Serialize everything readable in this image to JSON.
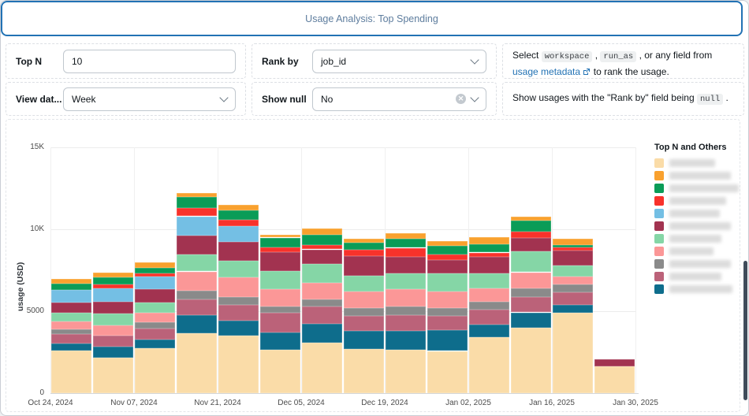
{
  "header": {
    "title": "Usage Analysis: Top Spending"
  },
  "controls": {
    "top_n": {
      "label": "Top N",
      "value": "10"
    },
    "rank_by": {
      "label": "Rank by",
      "value": "job_id"
    },
    "view_data": {
      "label": "View dat...",
      "value": "Week"
    },
    "show_null": {
      "label": "Show null",
      "value": "No"
    },
    "rank_by_help": {
      "t1": "Select ",
      "code1": "workspace",
      "t2": " , ",
      "code2": "run_as",
      "t3": " , or any field from ",
      "link": "usage metadata",
      "t4": " to rank the usage."
    },
    "show_null_help": {
      "t1": "Show usages with the \"Rank by\" field being ",
      "code1": "null",
      "t2": " ."
    }
  },
  "chart_data": {
    "type": "bar",
    "stacked": true,
    "title": "",
    "ylabel": "usage (USD)",
    "ylim": [
      0,
      15000
    ],
    "y_ticks": [
      {
        "label": "0",
        "value": 0
      },
      {
        "label": "5000",
        "value": 5000
      },
      {
        "label": "10K",
        "value": 10000
      },
      {
        "label": "15K",
        "value": 15000
      }
    ],
    "x_tick_labels": [
      "Oct 24, 2024",
      "Nov 07, 2024",
      "Nov 21, 2024",
      "Dec 05, 2024",
      "Dec 19, 2024",
      "Jan 02, 2025",
      "Jan 16, 2025",
      "Jan 30, 2025"
    ],
    "bars_count": 14,
    "legend_title": "Top N and Others",
    "legend_labels_redacted": true,
    "series": [
      {
        "name": "",
        "color": "#FADCA8",
        "values": [
          2615,
          2165,
          2725,
          3640,
          3530,
          2645,
          3095,
          2680,
          2645,
          2570,
          3400,
          4010,
          4890,
          1635
        ]
      },
      {
        "name": "",
        "color": "#F9A12E",
        "values": [
          285,
          320,
          315,
          210,
          315,
          160,
          400,
          225,
          370,
          320,
          420,
          210,
          400,
          0
        ]
      },
      {
        "name": "",
        "color": "#0A9C57",
        "values": [
          405,
          435,
          370,
          675,
          595,
          595,
          625,
          445,
          545,
          530,
          510,
          675,
          130,
          0
        ]
      },
      {
        "name": "",
        "color": "#F8322B",
        "values": [
          0,
          205,
          160,
          510,
          365,
          290,
          255,
          350,
          530,
          325,
          240,
          400,
          205,
          0
        ]
      },
      {
        "name": "",
        "color": "#74BFE4",
        "values": [
          755,
          835,
          805,
          1175,
          995,
          0,
          0,
          0,
          0,
          0,
          0,
          0,
          0,
          0
        ]
      },
      {
        "name": "",
        "color": "#A23350",
        "values": [
          605,
          720,
          805,
          1170,
          1155,
          1155,
          865,
          1220,
          1045,
          830,
          1045,
          805,
          915,
          420
        ]
      },
      {
        "name": "",
        "color": "#85D6A6",
        "values": [
          550,
          735,
          605,
          1025,
          1010,
          1120,
          1175,
          960,
          960,
          1090,
          880,
          1280,
          675,
          0
        ]
      },
      {
        "name": "",
        "color": "#FB9797",
        "values": [
          480,
          625,
          595,
          1175,
          1200,
          1045,
          1010,
          1025,
          1045,
          1025,
          850,
          960,
          445,
          0
        ]
      },
      {
        "name": "",
        "color": "#8A8A8A",
        "values": [
          290,
          0,
          400,
          530,
          480,
          400,
          435,
          445,
          510,
          445,
          480,
          565,
          515,
          0
        ]
      },
      {
        "name": "",
        "color": "#BB6279",
        "values": [
          590,
          660,
          640,
          960,
          960,
          1200,
          1040,
          935,
          980,
          885,
          915,
          930,
          735,
          0
        ]
      },
      {
        "name": "",
        "color": "#0E6D8C",
        "values": [
          400,
          675,
          560,
          1120,
          880,
          1045,
          1155,
          1120,
          1155,
          1280,
          770,
          915,
          515,
          0
        ]
      }
    ],
    "stack_order_bottom_to_top": [
      0,
      10,
      9,
      8,
      7,
      6,
      5,
      4,
      3,
      2,
      1
    ],
    "legend_position": "right",
    "grid": true
  }
}
